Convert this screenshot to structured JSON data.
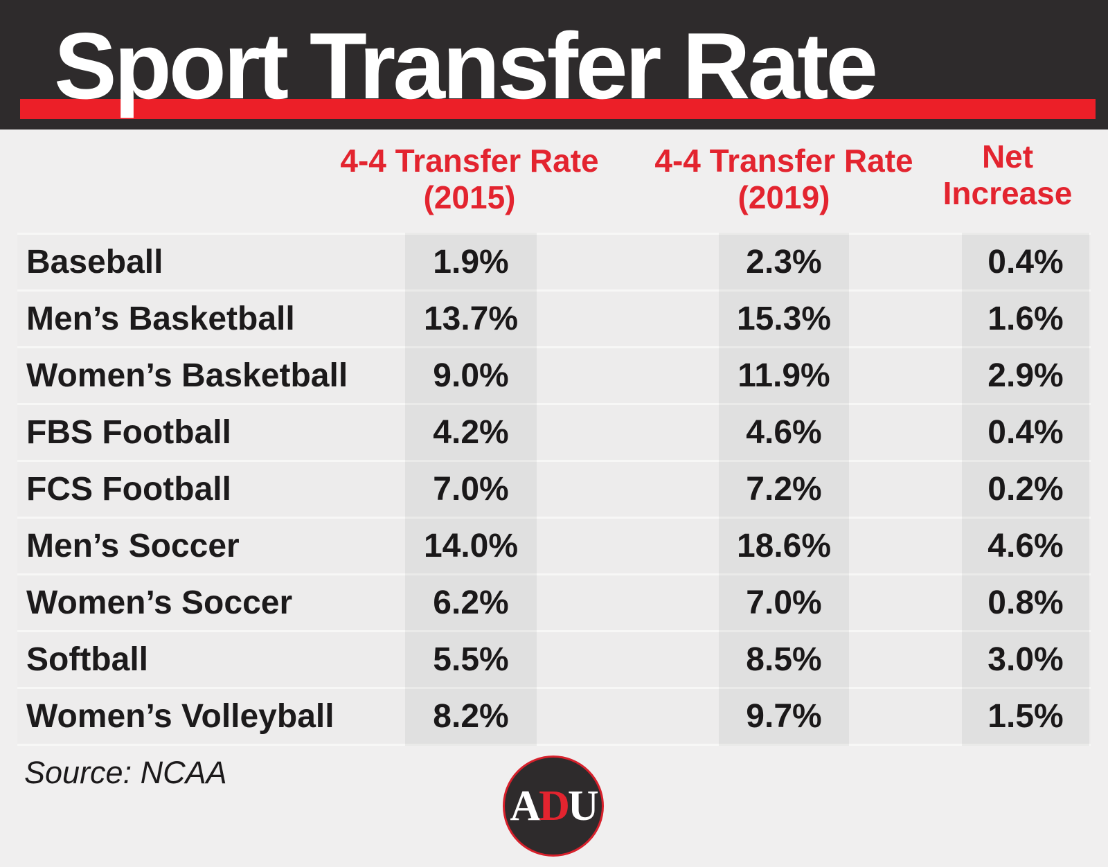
{
  "chart_data": {
    "type": "table",
    "title": "Sport Transfer Rate",
    "columns": [
      "",
      "4-4 Transfer Rate (2015)",
      "4-4 Transfer Rate (2019)",
      "Net Increase"
    ],
    "rows": [
      {
        "sport": "Baseball",
        "rate_2015": "1.9%",
        "rate_2019": "2.3%",
        "net_increase": "0.4%"
      },
      {
        "sport": "Men’s Basketball",
        "rate_2015": "13.7%",
        "rate_2019": "15.3%",
        "net_increase": "1.6%"
      },
      {
        "sport": "Women’s Basketball",
        "rate_2015": "9.0%",
        "rate_2019": "11.9%",
        "net_increase": "2.9%"
      },
      {
        "sport": "FBS Football",
        "rate_2015": "4.2%",
        "rate_2019": "4.6%",
        "net_increase": "0.4%"
      },
      {
        "sport": "FCS Football",
        "rate_2015": "7.0%",
        "rate_2019": "7.2%",
        "net_increase": "0.2%"
      },
      {
        "sport": "Men’s Soccer",
        "rate_2015": "14.0%",
        "rate_2019": "18.6%",
        "net_increase": "4.6%"
      },
      {
        "sport": "Women’s Soccer",
        "rate_2015": "6.2%",
        "rate_2019": "7.0%",
        "net_increase": "0.8%"
      },
      {
        "sport": "Softball",
        "rate_2015": "5.5%",
        "rate_2019": "8.5%",
        "net_increase": "3.0%"
      },
      {
        "sport": "Women’s Volleyball",
        "rate_2015": "8.2%",
        "rate_2019": "9.7%",
        "net_increase": "1.5%"
      }
    ],
    "source": "NCAA",
    "legend_position": "none",
    "grid": "row-separators"
  },
  "column_headers": {
    "col_2015": {
      "line1": "4-4 Transfer Rate",
      "line2": "(2015)"
    },
    "col_2019": {
      "line1": "4-4 Transfer Rate",
      "line2": "(2019)"
    },
    "col_net": {
      "line1": "Net",
      "line2": "Increase"
    }
  },
  "footer": {
    "source_label": "Source: NCAA"
  },
  "logo": {
    "letter_a": "A",
    "letter_d": "D",
    "letter_u": "U"
  },
  "colors": {
    "banner_background": "#2e2b2c",
    "banner_underline_red": "#ec1f28",
    "header_text_red": "#e3242f",
    "table_text": "#1c1a1b",
    "page_background": "#f0efef",
    "column_band": "rgba(0,0,0,0.05)",
    "logo_ring_red": "#d7202b"
  }
}
